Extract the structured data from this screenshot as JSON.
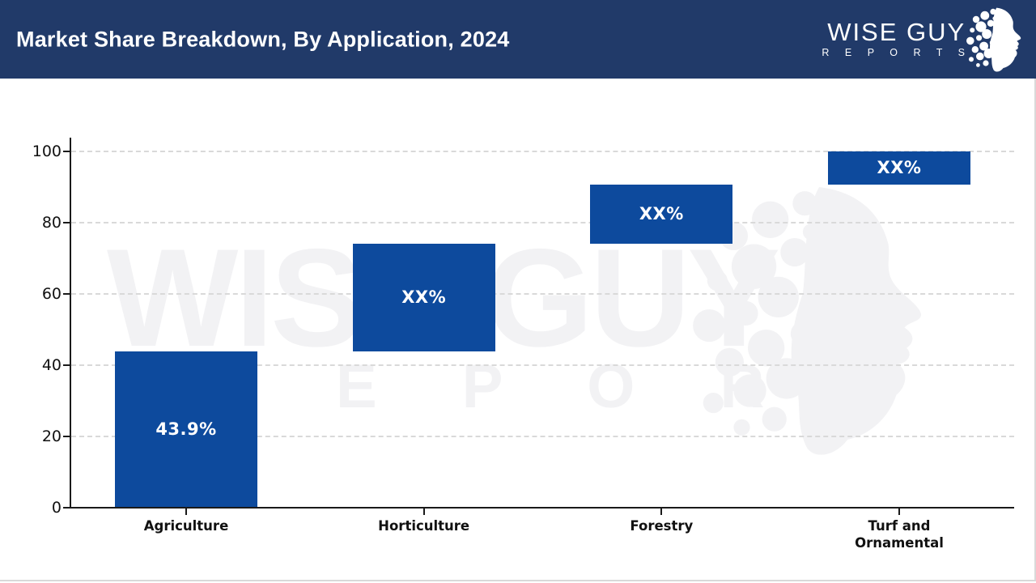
{
  "header": {
    "title": "Market Share Breakdown, By Application, 2024",
    "logo": {
      "line1": "WISE GUY",
      "line2": "R E P O R T S",
      "head_icon": "dotted-face-profile"
    }
  },
  "watermark": {
    "line1": "WISE GUY",
    "line2": "R E P O R T S",
    "head_icon": "dotted-face-profile"
  },
  "colors": {
    "header_bg": "#213a69",
    "bar": "#0d4a9d",
    "bar_label": "#ffffff",
    "gridline": "#d9d9d9",
    "axis": "#1a1a1a",
    "watermark": "#f2f2f4"
  },
  "chart_data": {
    "type": "bar",
    "subtype": "waterfall",
    "title": "Market Share Breakdown, By Application, 2024",
    "categories": [
      "Agriculture",
      "Horticulture",
      "Forestry",
      "Turf and Ornamental"
    ],
    "segments": [
      {
        "category": "Agriculture",
        "start": 0,
        "end": 43.9,
        "label": "43.9%"
      },
      {
        "category": "Horticulture",
        "start": 43.9,
        "end": 74.2,
        "label": "XX%"
      },
      {
        "category": "Forestry",
        "start": 74.2,
        "end": 90.7,
        "label": "XX%"
      },
      {
        "category": "Turf and Ornamental",
        "start": 90.7,
        "end": 100,
        "label": "XX%"
      }
    ],
    "ylim": [
      0,
      100
    ],
    "yticks": [
      0,
      20,
      40,
      60,
      80,
      100
    ],
    "grid": "horizontal-dashed",
    "legend": "none",
    "bar_color": "#0d4a9d"
  }
}
